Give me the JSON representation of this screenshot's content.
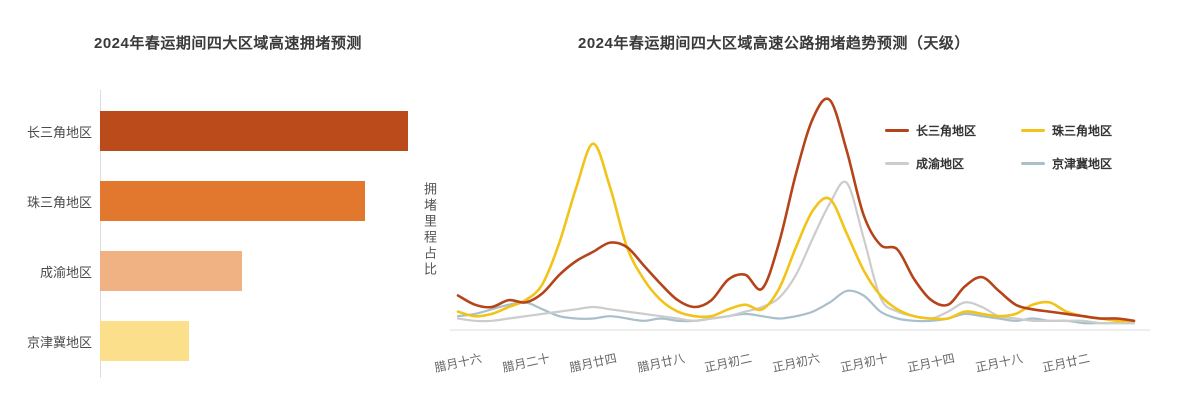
{
  "chart_data": [
    {
      "type": "bar",
      "orientation": "horizontal",
      "title": "2024年春运期间四大区域高速拥堵预测",
      "categories": [
        "长三角地区",
        "珠三角地区",
        "成渝地区",
        "京津冀地区"
      ],
      "values": [
        100,
        86,
        46,
        29
      ],
      "colors": [
        "#BC4B1C",
        "#E2772E",
        "#F0B183",
        "#FBDF8B"
      ],
      "xlabel": "",
      "ylabel": "",
      "grid": false
    },
    {
      "type": "line",
      "title": "2024年春运期间四大区域高速公路拥堵趋势预测（天级）",
      "ylabel": "拥堵里程占比",
      "xlabel": "",
      "x_tick_labels": [
        "腊月十六",
        "腊月二十",
        "腊月廿四",
        "腊月廿八",
        "正月初二",
        "正月初六",
        "正月初十",
        "正月十四",
        "正月十八",
        "正月廿二"
      ],
      "x_tick_step": 4,
      "ylim": [
        0,
        110
      ],
      "grid": false,
      "legend_position": "top-right",
      "tick_rotation_deg": -12,
      "series": [
        {
          "name": "长三角地区",
          "color": "#B5441A",
          "values": [
            15,
            11,
            10,
            13,
            12,
            16,
            24,
            30,
            34,
            38,
            36,
            28,
            20,
            13,
            10,
            13,
            22,
            24,
            18,
            38,
            68,
            92,
            100,
            78,
            50,
            37,
            35,
            22,
            13,
            11,
            19,
            23,
            17,
            11,
            9,
            8,
            7,
            6,
            5,
            5,
            4
          ]
        },
        {
          "name": "珠三角地区",
          "color": "#F2C318",
          "values": [
            8,
            6,
            7,
            10,
            13,
            20,
            38,
            62,
            81,
            62,
            36,
            22,
            13,
            8,
            6,
            6,
            9,
            11,
            9,
            18,
            36,
            52,
            57,
            42,
            26,
            15,
            9,
            6,
            5,
            5,
            8,
            7,
            6,
            7,
            11,
            12,
            8,
            6,
            5,
            4,
            4
          ]
        },
        {
          "name": "成渝地区",
          "color": "#CCCCCC",
          "values": [
            5,
            4,
            4,
            5,
            6,
            7,
            8,
            9,
            10,
            9,
            8,
            7,
            6,
            5,
            4,
            5,
            6,
            8,
            10,
            14,
            24,
            40,
            55,
            64,
            40,
            14,
            8,
            6,
            5,
            8,
            12,
            10,
            6,
            5,
            4,
            4,
            4,
            4,
            3,
            3,
            3
          ]
        },
        {
          "name": "京津冀地区",
          "color": "#A9BFCC",
          "values": [
            6,
            7,
            9,
            11,
            12,
            9,
            6,
            5,
            5,
            6,
            5,
            4,
            5,
            4,
            4,
            5,
            6,
            7,
            6,
            5,
            6,
            8,
            12,
            17,
            15,
            8,
            5,
            4,
            4,
            5,
            7,
            6,
            5,
            4,
            5,
            4,
            4,
            3,
            3,
            3,
            3
          ]
        }
      ]
    }
  ]
}
